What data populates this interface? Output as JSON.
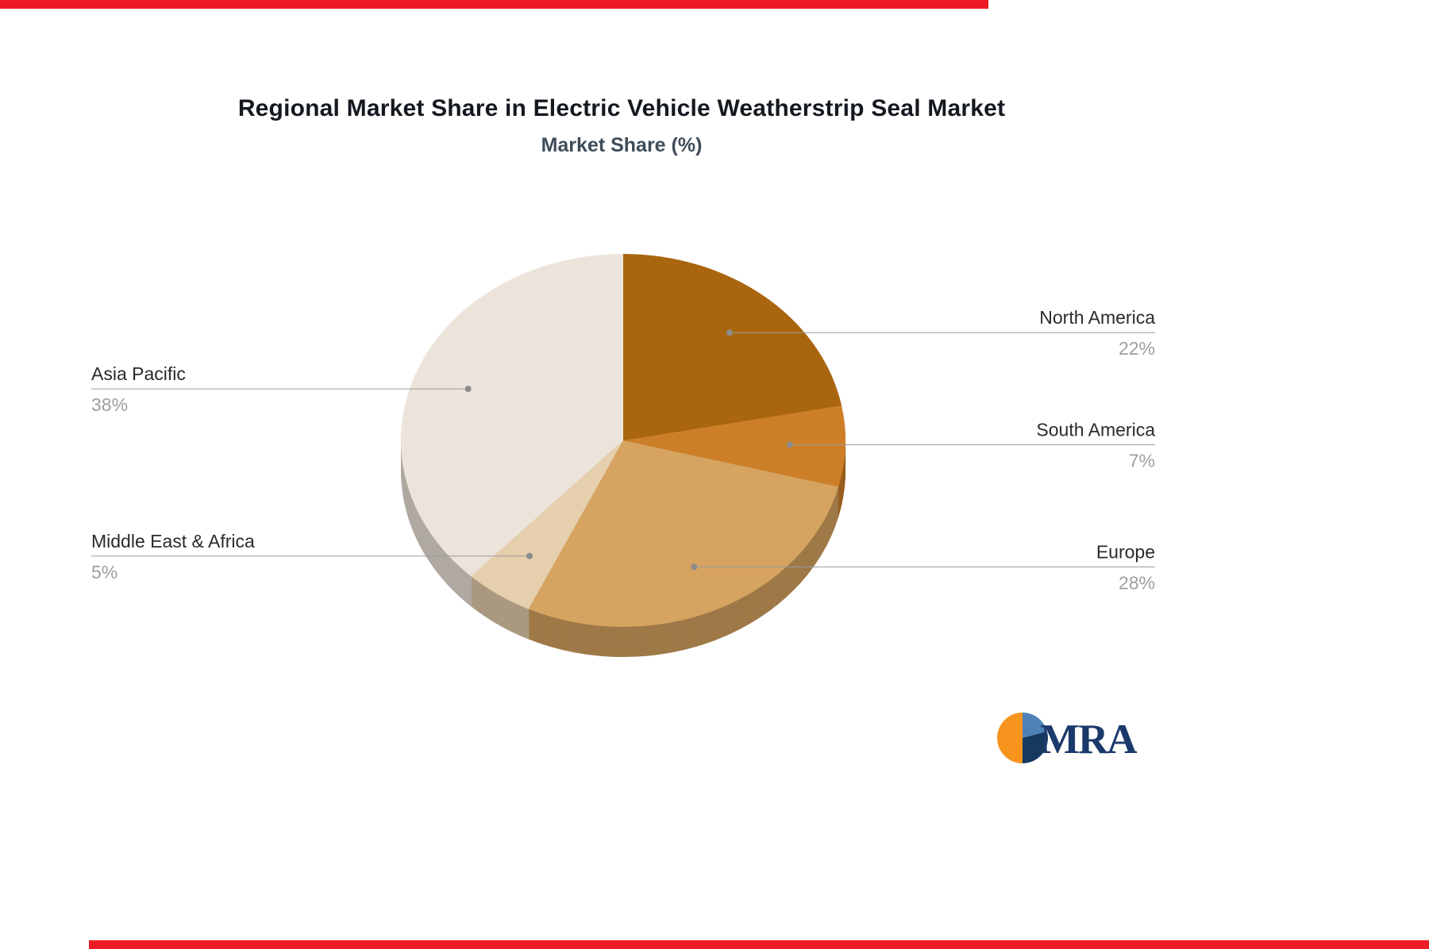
{
  "chart_data": {
    "type": "pie",
    "title": "Regional Market Share in Electric Vehicle Weatherstrip Seal Market",
    "subtitle": "Market Share (%)",
    "unit": "%",
    "categories": [
      "North America",
      "South America",
      "Europe",
      "Middle East & Africa",
      "Asia Pacific"
    ],
    "values": [
      22,
      7,
      28,
      5,
      38
    ],
    "display_labels": [
      "22%",
      "7%",
      "28%",
      "5%",
      "38%"
    ],
    "colors": [
      "#a9660f",
      "#cd7f28",
      "#d6a360",
      "#e6cfad",
      "#ece4da"
    ],
    "label_sides": [
      "right",
      "right",
      "right",
      "left",
      "left"
    ],
    "start_angle_deg": -90,
    "direction": "clockwise",
    "legend": "none",
    "effect_3d": true
  },
  "accents": {
    "top_bar_color": "#ee1c25",
    "bottom_bar_color": "#ee1c25",
    "leader_line_color": "#9b9b9b",
    "leader_dot_color": "#8c8c8c"
  },
  "logo": {
    "text": "MRA",
    "text_color": "#1b3a6b",
    "globe_colors": [
      "#f7941e",
      "#4e81b7",
      "#16395f"
    ]
  }
}
